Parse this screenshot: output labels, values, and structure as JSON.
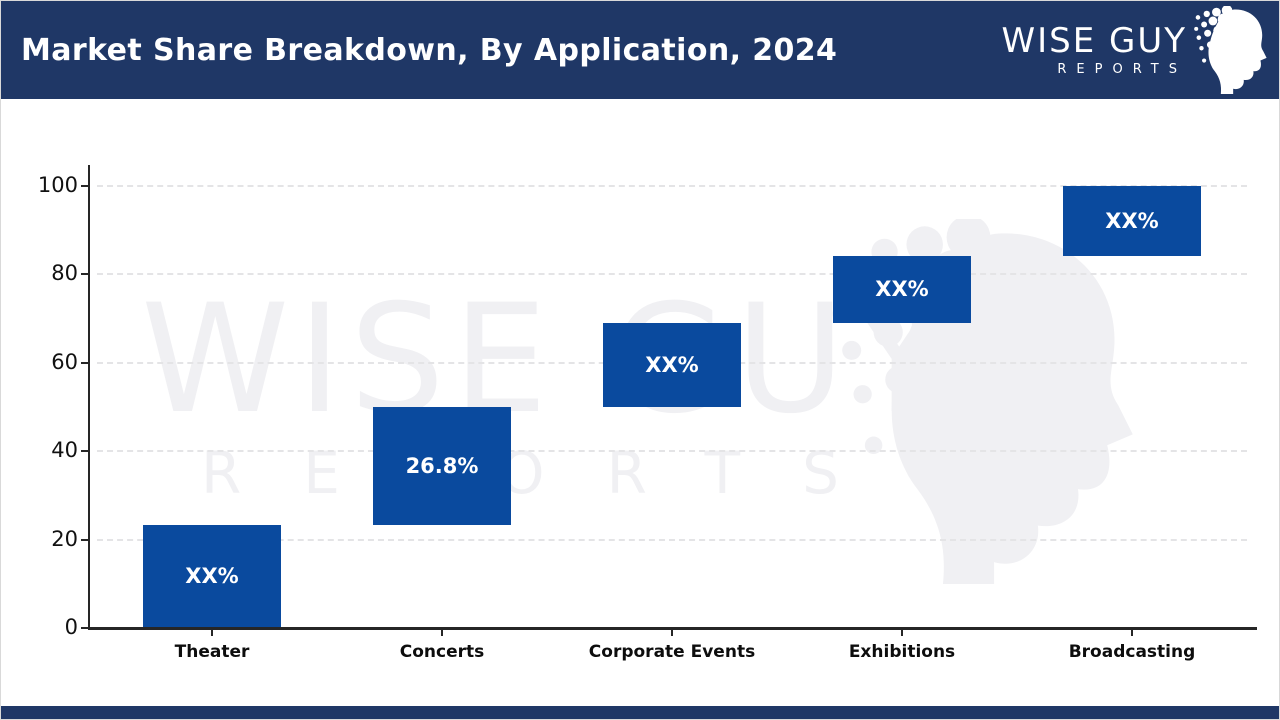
{
  "header": {
    "title": "Market Share Breakdown, By Application, 2024",
    "logo": {
      "line1": "WISE GUY",
      "line2": "REPORTS"
    }
  },
  "watermark": {
    "line1": "WISE GUY",
    "line2": "REPORTS"
  },
  "colors": {
    "header_bg": "#1f3766",
    "footer_bg": "#1f3766",
    "bar": "#0a4a9e",
    "bar_label": "#ffffff",
    "axis": "#262626",
    "grid": "#e4e4e6",
    "watermark": "#f0f0f3",
    "title_text": "#ffffff"
  },
  "chart_data": {
    "type": "bar",
    "subtype": "floating-waterfall",
    "title": "Market Share Breakdown, By Application, 2024",
    "categories": [
      "Theater",
      "Concerts",
      "Corporate Events",
      "Exhibitions",
      "Broadcasting"
    ],
    "segments": [
      {
        "category": "Theater",
        "start": 0,
        "end": 23.3,
        "label": "XX%"
      },
      {
        "category": "Concerts",
        "start": 23.3,
        "end": 50.1,
        "label": "26.8%"
      },
      {
        "category": "Corporate Events",
        "start": 50.1,
        "end": 69.1,
        "label": "XX%"
      },
      {
        "category": "Exhibitions",
        "start": 69.1,
        "end": 84.2,
        "label": "XX%"
      },
      {
        "category": "Broadcasting",
        "start": 84.2,
        "end": 100,
        "label": "XX%"
      }
    ],
    "xlabel": "",
    "ylabel": "",
    "ylim": [
      0,
      100
    ],
    "yticks": [
      0,
      20,
      40,
      60,
      80,
      100
    ],
    "grid": "horizontal-dashed",
    "legend": "none"
  }
}
